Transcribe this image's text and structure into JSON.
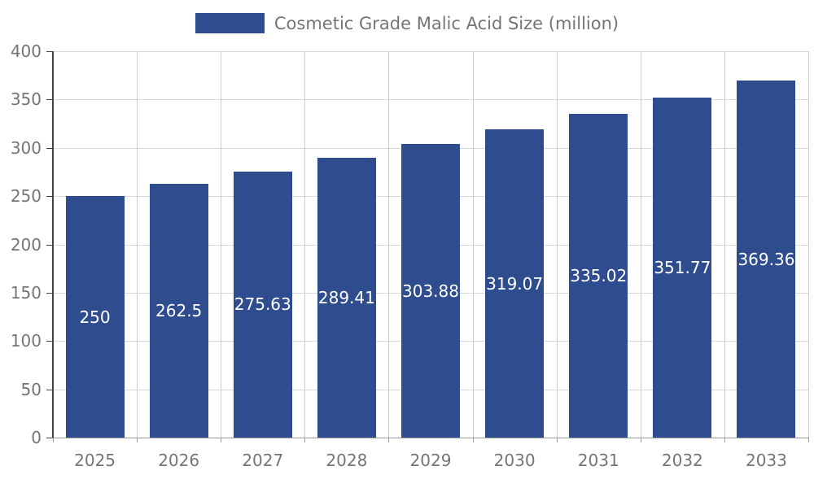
{
  "chart_data": {
    "type": "bar",
    "title": "Cosmetic Grade Malic Acid Size (million)",
    "categories": [
      "2025",
      "2026",
      "2027",
      "2028",
      "2029",
      "2030",
      "2031",
      "2032",
      "2033"
    ],
    "values": [
      250,
      262.5,
      275.63,
      289.41,
      303.88,
      319.07,
      335.02,
      351.77,
      369.36
    ],
    "value_labels": [
      "250",
      "262.5",
      "275.63",
      "289.41",
      "303.88",
      "319.07",
      "335.02",
      "351.77",
      "369.36"
    ],
    "xlabel": "",
    "ylabel": "",
    "ylim": [
      0,
      400
    ],
    "yticks": [
      0,
      50,
      100,
      150,
      200,
      250,
      300,
      350,
      400
    ],
    "grid": true,
    "legend_position": "top-center",
    "colors": {
      "bar": "#2E4C8E",
      "bar_label": "#ffffff",
      "axis_text": "#757575",
      "grid_h": "#d9d9d9",
      "grid_v": "#cccccc",
      "y_axis_line": "#444444",
      "x_axis_line": "#999999"
    }
  }
}
